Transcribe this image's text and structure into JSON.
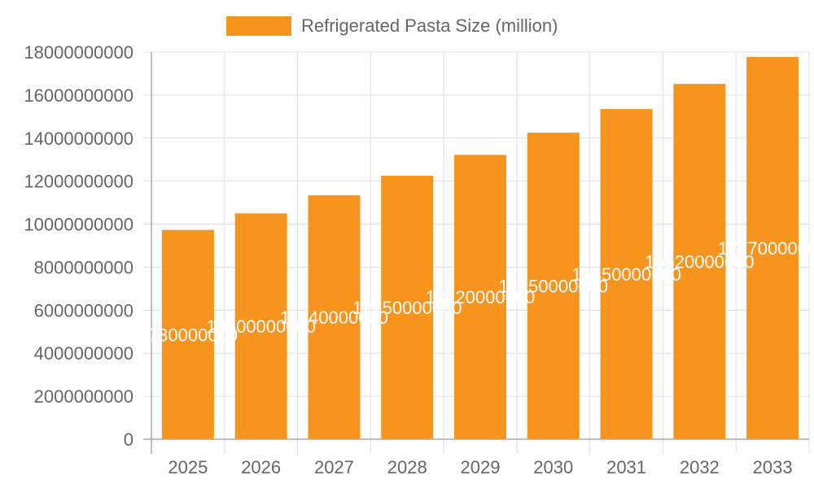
{
  "chart_data": {
    "type": "bar",
    "categories": [
      "2025",
      "2026",
      "2027",
      "2028",
      "2029",
      "2030",
      "2031",
      "2032",
      "2033"
    ],
    "series": [
      {
        "name": "Refrigerated Pasta Size (million)",
        "values": [
          9730000000,
          10500000000,
          11340000000,
          12250000000,
          13220000000,
          14250000000,
          15350000000,
          16520000000,
          17770000000
        ],
        "color": "#F7941D"
      }
    ],
    "ylim": [
      0,
      18000000000
    ],
    "yticks": [
      0,
      2000000000,
      4000000000,
      6000000000,
      8000000000,
      10000000000,
      12000000000,
      14000000000,
      16000000000,
      18000000000
    ],
    "grid": true,
    "legend_position": "top-center",
    "data_label_color": "#ffffff",
    "axis_text_color": "#666666",
    "grid_color": "#e0e0e0"
  }
}
